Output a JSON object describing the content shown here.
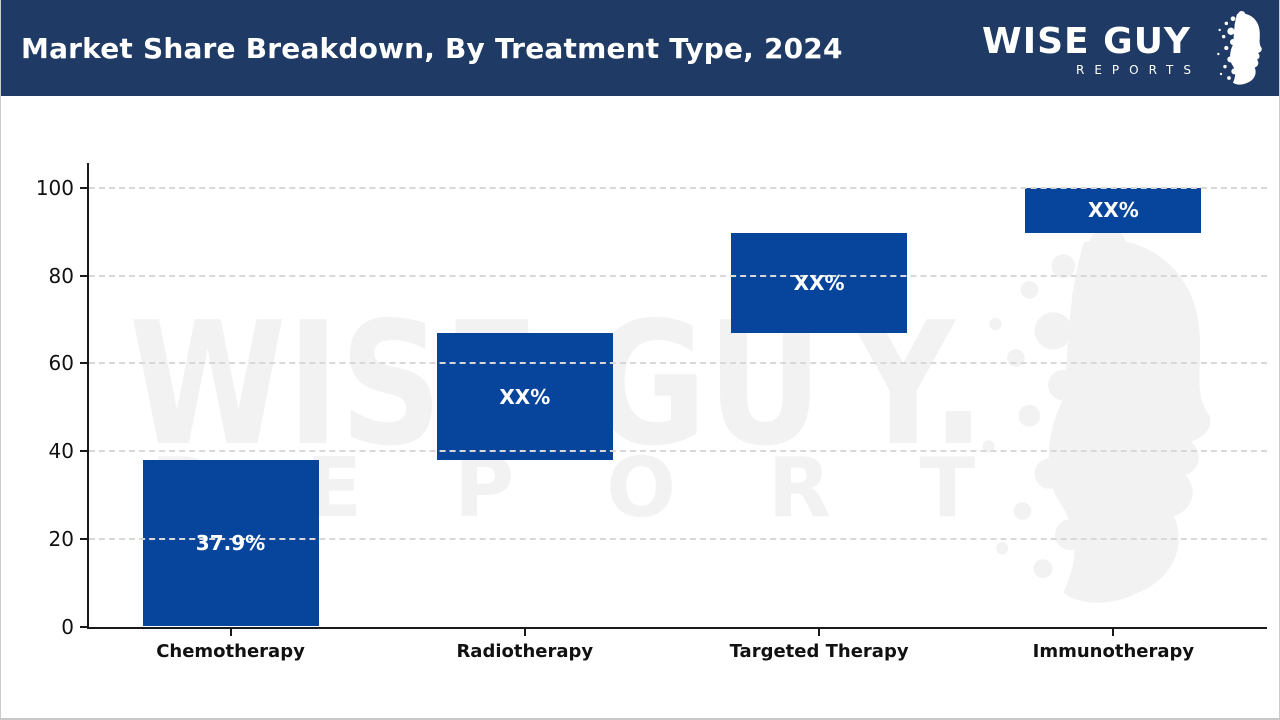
{
  "header": {
    "title": "Market Share Breakdown, By Treatment Type, 2024",
    "logo": {
      "name1": "WISE GUY",
      "name2": "REPORTS"
    }
  },
  "watermark": {
    "text1": "WISE GU",
    "text1b": "Y.",
    "text2": "REPORTS"
  },
  "chart_data": {
    "type": "bar",
    "subtype": "waterfall",
    "title": "Market Share Breakdown, By Treatment Type, 2024",
    "categories": [
      "Chemotherapy",
      "Radiotherapy",
      "Targeted Therapy",
      "Immunotherapy"
    ],
    "series": [
      {
        "name": "Chemotherapy",
        "start": 0,
        "end": 37.9,
        "label": "37.9%"
      },
      {
        "name": "Radiotherapy",
        "start": 37.9,
        "end": 67.0,
        "label": "XX%"
      },
      {
        "name": "Targeted Therapy",
        "start": 67.0,
        "end": 89.8,
        "label": "XX%"
      },
      {
        "name": "Immunotherapy",
        "start": 89.8,
        "end": 100.0,
        "label": "XX%"
      }
    ],
    "xlabel": "",
    "ylabel": "",
    "yticks": [
      0,
      20,
      40,
      60,
      80,
      100
    ],
    "ylim": [
      0,
      106
    ],
    "grid": "horizontal-dashed",
    "legend": "none"
  },
  "colors": {
    "header_bg": "#1f3a64",
    "bar_fill": "#07449c",
    "grid_line": "#d8d8d8",
    "axis_line": "#1a1a1a",
    "text_dark": "#111111",
    "bar_label": "#ffffff",
    "watermark": "#f2f2f2",
    "page_border": "#c9c9c9"
  }
}
